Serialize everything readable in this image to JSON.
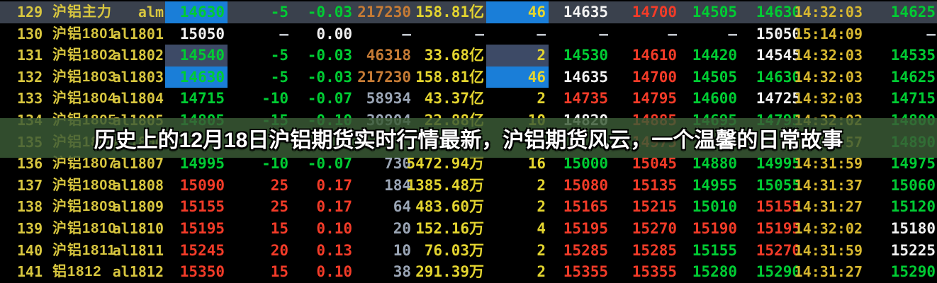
{
  "banner": {
    "text": "历史上的12月18日沪铝期货实时行情最新，沪铝期货风云，一个温馨的日常故事",
    "overlay_color": "rgba(58,90,54,0.84)"
  },
  "colors": {
    "g": "#00cc33",
    "r": "#f23b28",
    "w": "#f2f2f2",
    "o": "#c67b35",
    "b": "#9aa5b5",
    "y": "#e3d42f",
    "t": "#d8b830",
    "d": "#c4c9d0",
    "label_yellow": "#d8c63f",
    "hl_blue": "#1a7ed8",
    "hl_navy": "#3d4a66",
    "selected_row_bg": "#3a414d"
  },
  "table": {
    "rows": [
      {
        "seq": "129",
        "name": "沪铝主力",
        "code": "alm",
        "selected": true,
        "cells": [
          {
            "t": "14630",
            "c": "g",
            "hl": "blue"
          },
          {
            "t": "-5",
            "c": "g"
          },
          {
            "t": "-0.03",
            "c": "g"
          },
          {
            "t": "217230",
            "c": "o"
          },
          {
            "t": "158.81亿",
            "c": "y"
          },
          {
            "t": "46",
            "c": "y",
            "hl": "blue"
          },
          {
            "t": "14635",
            "c": "w"
          },
          {
            "t": "14700",
            "c": "r"
          },
          {
            "t": "14505",
            "c": "g"
          },
          {
            "t": "14630",
            "c": "g"
          },
          {
            "t": "14:32:03",
            "c": "t"
          },
          {
            "t": "14625",
            "c": "g"
          }
        ]
      },
      {
        "seq": "130",
        "name": "沪铝1801",
        "code": "al1801",
        "cells": [
          {
            "t": "15050",
            "c": "w"
          },
          {
            "t": "—",
            "c": "d"
          },
          {
            "t": "0.00",
            "c": "w"
          },
          {
            "t": "—",
            "c": "d"
          },
          {
            "t": "—",
            "c": "d"
          },
          {
            "t": "—",
            "c": "d"
          },
          {
            "t": "—",
            "c": "d"
          },
          {
            "t": "—",
            "c": "d"
          },
          {
            "t": "—",
            "c": "d"
          },
          {
            "t": "15050",
            "c": "w"
          },
          {
            "t": "15:14:09",
            "c": "t"
          },
          {
            "t": "—",
            "c": "d"
          }
        ]
      },
      {
        "seq": "131",
        "name": "沪铝1802",
        "code": "al1802",
        "cells": [
          {
            "t": "14540",
            "c": "g",
            "hl": "navy"
          },
          {
            "t": "-5",
            "c": "g"
          },
          {
            "t": "-0.03",
            "c": "g"
          },
          {
            "t": "46318",
            "c": "o"
          },
          {
            "t": "33.68亿",
            "c": "y"
          },
          {
            "t": "2",
            "c": "y",
            "hl": "navy"
          },
          {
            "t": "14530",
            "c": "g"
          },
          {
            "t": "14610",
            "c": "r"
          },
          {
            "t": "14420",
            "c": "g"
          },
          {
            "t": "14545",
            "c": "w"
          },
          {
            "t": "14:32:03",
            "c": "t"
          },
          {
            "t": "14535",
            "c": "g"
          }
        ]
      },
      {
        "seq": "132",
        "name": "沪铝1803",
        "code": "al1803",
        "cells": [
          {
            "t": "14630",
            "c": "g",
            "hl": "blue"
          },
          {
            "t": "-5",
            "c": "g"
          },
          {
            "t": "-0.03",
            "c": "g"
          },
          {
            "t": "217230",
            "c": "o"
          },
          {
            "t": "158.81亿",
            "c": "y"
          },
          {
            "t": "46",
            "c": "y",
            "hl": "blue"
          },
          {
            "t": "14635",
            "c": "w"
          },
          {
            "t": "14700",
            "c": "r"
          },
          {
            "t": "14505",
            "c": "g"
          },
          {
            "t": "14630",
            "c": "g"
          },
          {
            "t": "14:32:03",
            "c": "t"
          },
          {
            "t": "14625",
            "c": "g"
          }
        ]
      },
      {
        "seq": "133",
        "name": "沪铝1804",
        "code": "al1804",
        "cells": [
          {
            "t": "14715",
            "c": "g"
          },
          {
            "t": "-10",
            "c": "g"
          },
          {
            "t": "-0.07",
            "c": "g"
          },
          {
            "t": "58934",
            "c": "b"
          },
          {
            "t": "43.37亿",
            "c": "y"
          },
          {
            "t": "2",
            "c": "y"
          },
          {
            "t": "14735",
            "c": "r"
          },
          {
            "t": "14795",
            "c": "r"
          },
          {
            "t": "14600",
            "c": "g"
          },
          {
            "t": "14725",
            "c": "w"
          },
          {
            "t": "14:32:03",
            "c": "t"
          },
          {
            "t": "14715",
            "c": "g"
          }
        ]
      },
      {
        "seq": "134",
        "name": "沪铝1805",
        "code": "al1805",
        "cells": [
          {
            "t": "14805",
            "c": "g"
          },
          {
            "t": "-15",
            "c": "g"
          },
          {
            "t": "-0.10",
            "c": "g"
          },
          {
            "t": "30904",
            "c": "b"
          },
          {
            "t": "22.88亿",
            "c": "y"
          },
          {
            "t": "10",
            "c": "y"
          },
          {
            "t": "14820",
            "c": "w"
          },
          {
            "t": "14885",
            "c": "r"
          },
          {
            "t": "14695",
            "c": "g"
          },
          {
            "t": "14795",
            "c": "g"
          },
          {
            "t": "14:32:02",
            "c": "t"
          },
          {
            "t": "14800",
            "c": "g"
          }
        ]
      },
      {
        "seq": "135",
        "name": "沪铝1806",
        "code": "al1806",
        "cells": [
          {
            "t": "",
            "c": "g"
          },
          {
            "t": "",
            "c": "g"
          },
          {
            "t": "",
            "c": "g"
          },
          {
            "t": "",
            "c": "b"
          },
          {
            "t": "",
            "c": "y"
          },
          {
            "t": "",
            "c": "y"
          },
          {
            "t": "",
            "c": "w"
          },
          {
            "t": "14975",
            "c": "r"
          },
          {
            "t": "",
            "c": "g"
          },
          {
            "t": "",
            "c": "g"
          },
          {
            "t": "14:31:57",
            "c": "t"
          },
          {
            "t": "14890",
            "c": "g"
          }
        ]
      },
      {
        "seq": "136",
        "name": "沪铝1807",
        "code": "al1807",
        "cells": [
          {
            "t": "14995",
            "c": "g"
          },
          {
            "t": "-10",
            "c": "g"
          },
          {
            "t": "-0.07",
            "c": "g"
          },
          {
            "t": "730",
            "c": "b"
          },
          {
            "t": "5472.94万",
            "c": "y"
          },
          {
            "t": "16",
            "c": "y"
          },
          {
            "t": "15000",
            "c": "g"
          },
          {
            "t": "15045",
            "c": "r"
          },
          {
            "t": "14880",
            "c": "g"
          },
          {
            "t": "14995",
            "c": "g"
          },
          {
            "t": "14:31:59",
            "c": "t"
          },
          {
            "t": "14975",
            "c": "g"
          }
        ]
      },
      {
        "seq": "137",
        "name": "沪铝1808",
        "code": "al1808",
        "cells": [
          {
            "t": "15090",
            "c": "r"
          },
          {
            "t": "25",
            "c": "r"
          },
          {
            "t": "0.17",
            "c": "r"
          },
          {
            "t": "184",
            "c": "b"
          },
          {
            "t": "1385.48万",
            "c": "y"
          },
          {
            "t": "2",
            "c": "y"
          },
          {
            "t": "15080",
            "c": "r"
          },
          {
            "t": "15135",
            "c": "r"
          },
          {
            "t": "14955",
            "c": "g"
          },
          {
            "t": "15055",
            "c": "g"
          },
          {
            "t": "14:31:37",
            "c": "t"
          },
          {
            "t": "15060",
            "c": "g"
          }
        ]
      },
      {
        "seq": "138",
        "name": "沪铝1809",
        "code": "al1809",
        "cells": [
          {
            "t": "15155",
            "c": "r"
          },
          {
            "t": "25",
            "c": "r"
          },
          {
            "t": "0.17",
            "c": "r"
          },
          {
            "t": "64",
            "c": "b"
          },
          {
            "t": "483.60万",
            "c": "y"
          },
          {
            "t": "2",
            "c": "y"
          },
          {
            "t": "15165",
            "c": "r"
          },
          {
            "t": "15215",
            "c": "r"
          },
          {
            "t": "15010",
            "c": "g"
          },
          {
            "t": "15155",
            "c": "r"
          },
          {
            "t": "14:31:27",
            "c": "t"
          },
          {
            "t": "15120",
            "c": "g"
          }
        ]
      },
      {
        "seq": "139",
        "name": "沪铝1810",
        "code": "al1810",
        "cells": [
          {
            "t": "15195",
            "c": "r"
          },
          {
            "t": "15",
            "c": "r"
          },
          {
            "t": "0.10",
            "c": "r"
          },
          {
            "t": "20",
            "c": "b"
          },
          {
            "t": "152.16万",
            "c": "y"
          },
          {
            "t": "4",
            "c": "y"
          },
          {
            "t": "15195",
            "c": "r"
          },
          {
            "t": "15270",
            "c": "r"
          },
          {
            "t": "15190",
            "c": "r"
          },
          {
            "t": "15195",
            "c": "r"
          },
          {
            "t": "14:32:02",
            "c": "t"
          },
          {
            "t": "15180",
            "c": "w"
          }
        ]
      },
      {
        "seq": "140",
        "name": "沪铝1811",
        "code": "al1811",
        "cells": [
          {
            "t": "15245",
            "c": "r"
          },
          {
            "t": "20",
            "c": "r"
          },
          {
            "t": "0.13",
            "c": "r"
          },
          {
            "t": "10",
            "c": "b"
          },
          {
            "t": "76.03万",
            "c": "y"
          },
          {
            "t": "2",
            "c": "y"
          },
          {
            "t": "15285",
            "c": "r"
          },
          {
            "t": "15285",
            "c": "r"
          },
          {
            "t": "15155",
            "c": "g"
          },
          {
            "t": "15270",
            "c": "r"
          },
          {
            "t": "14:31:59",
            "c": "t"
          },
          {
            "t": "15225",
            "c": "w"
          }
        ]
      },
      {
        "seq": "141",
        "name": "铝1812",
        "code": "al1812",
        "cells": [
          {
            "t": "15350",
            "c": "r"
          },
          {
            "t": "15",
            "c": "r"
          },
          {
            "t": "0.10",
            "c": "r"
          },
          {
            "t": "38",
            "c": "b"
          },
          {
            "t": "291.39万",
            "c": "y"
          },
          {
            "t": "2",
            "c": "y"
          },
          {
            "t": "15355",
            "c": "r"
          },
          {
            "t": "15355",
            "c": "r"
          },
          {
            "t": "15280",
            "c": "g"
          },
          {
            "t": "15290",
            "c": "g"
          },
          {
            "t": "14:31:27",
            "c": "t"
          },
          {
            "t": "15290",
            "c": "g"
          }
        ]
      }
    ]
  }
}
